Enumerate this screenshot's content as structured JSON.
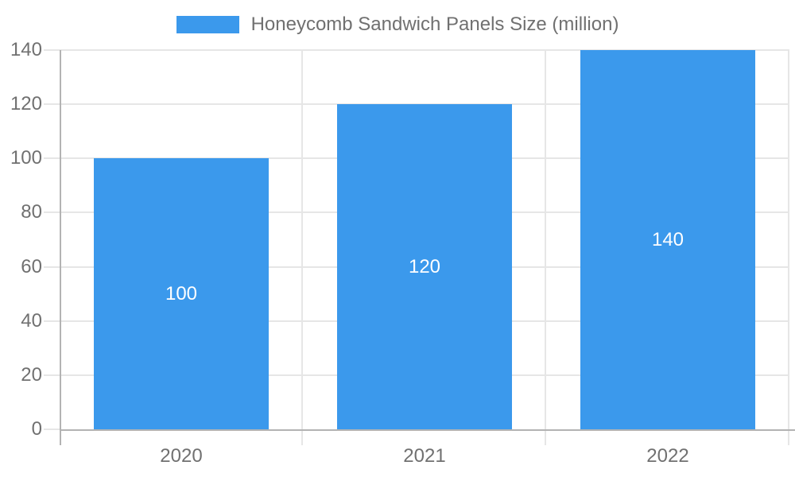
{
  "legend": {
    "label": "Honeycomb Sandwich Panels Size (million)"
  },
  "chart_data": {
    "type": "bar",
    "title": "",
    "categories": [
      "2020",
      "2021",
      "2022"
    ],
    "series": [
      {
        "name": "Honeycomb Sandwich Panels Size (million)",
        "values": [
          100,
          120,
          140
        ]
      }
    ],
    "bar_value_labels": [
      "100",
      "120",
      "140"
    ],
    "xlabel": "",
    "ylabel": "",
    "ylim": [
      0,
      140
    ],
    "yticks": [
      0,
      20,
      40,
      60,
      80,
      100,
      120,
      140
    ],
    "grid": true,
    "legend_position": "top",
    "colors": {
      "bar": "#3B99EC",
      "bar_label_text": "#ffffff",
      "axis_line": "#b3b3b3",
      "gridline": "#e6e6e6",
      "tick_text": "#707070",
      "legend_text": "#707070",
      "background": "#ffffff"
    }
  }
}
